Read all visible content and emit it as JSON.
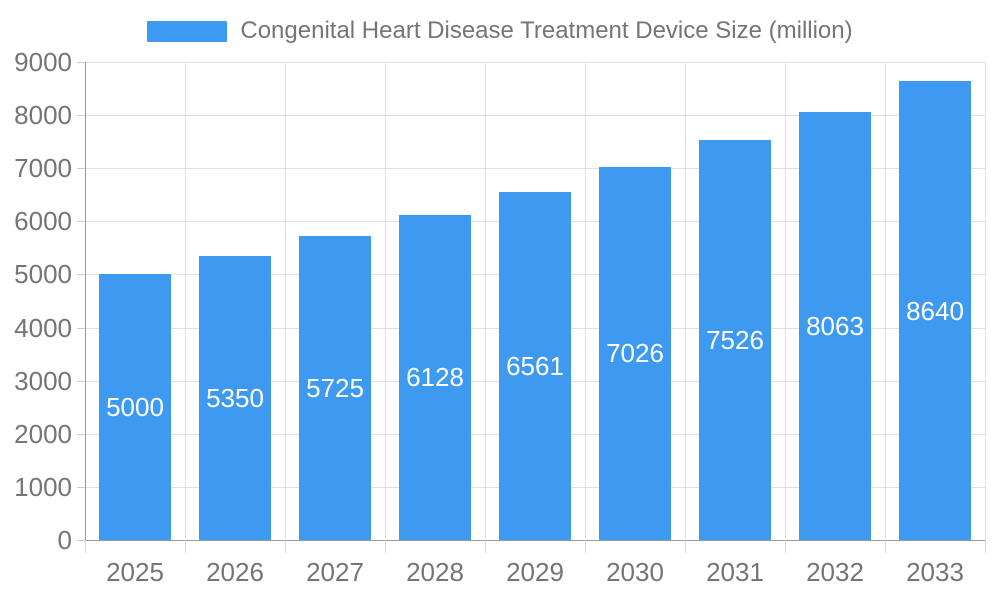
{
  "legend": {
    "label": "Congenital Heart Disease Treatment Device Size (million)"
  },
  "chart_data": {
    "type": "bar",
    "title": "Congenital Heart Disease Treatment Device Size (million)",
    "categories": [
      "2025",
      "2026",
      "2027",
      "2028",
      "2029",
      "2030",
      "2031",
      "2032",
      "2033"
    ],
    "values": [
      5000,
      5350,
      5725,
      6128,
      6561,
      7026,
      7526,
      8063,
      8640
    ],
    "xlabel": "",
    "ylabel": "",
    "ylim": [
      0,
      9000
    ],
    "yticks": [
      0,
      1000,
      2000,
      3000,
      4000,
      5000,
      6000,
      7000,
      8000,
      9000
    ],
    "grid": true,
    "legend_position": "top-center",
    "value_labels": "inside-center"
  },
  "colors": {
    "bar": "#3D9AF0",
    "grid": "#E0E0E0",
    "axis": "#999999",
    "tick": "#CCCCCC",
    "text": "#757575",
    "bar_label": "#FFFFFF",
    "background": "#FFFFFF"
  }
}
